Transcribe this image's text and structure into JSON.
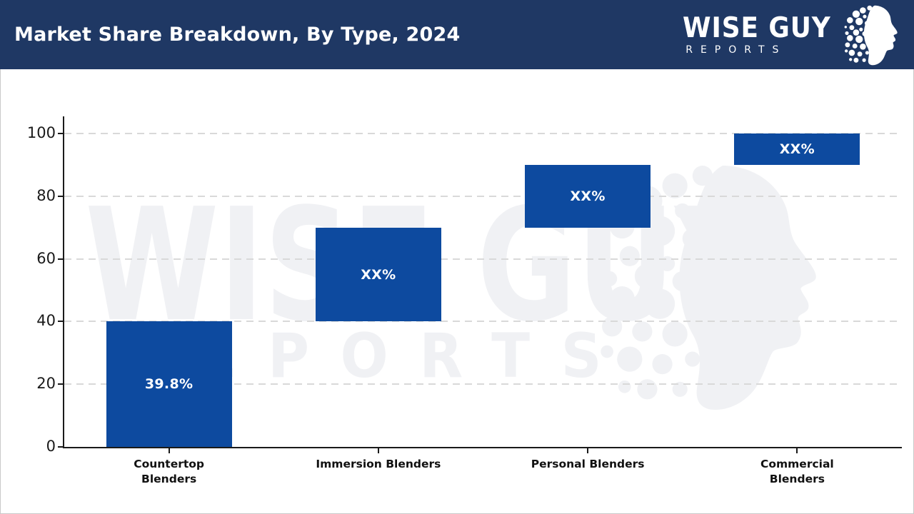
{
  "colors": {
    "header_bg": "#1f3864",
    "bar_blue": "#0d4a9f",
    "axis": "#1a1a1a",
    "gridline": "#d9d9d9",
    "watermark": "#f0f1f4",
    "bar_label": "#ffffff",
    "frame_border": "#c9c9c9"
  },
  "header": {
    "title": "Market Share Breakdown, By Type, 2024",
    "logo": {
      "wordmark": "WISE GUY",
      "subtext": "REPORTS"
    }
  },
  "watermark": {
    "wordmark": "WISE GUY",
    "subtext": "REPORTS"
  },
  "chart_data": {
    "type": "bar",
    "subtype": "waterfall",
    "title": "Market Share Breakdown, By Type, 2024",
    "categories": [
      "Countertop\nBlenders",
      "Immersion Blenders",
      "Personal Blenders",
      "Commercial\nBlenders"
    ],
    "series": [
      {
        "name": "Market share (%)",
        "segments": [
          {
            "category": "Countertop Blenders",
            "start": 0,
            "end": 40,
            "label": "39.8%"
          },
          {
            "category": "Immersion Blenders",
            "start": 40,
            "end": 70,
            "label": "XX%"
          },
          {
            "category": "Personal Blenders",
            "start": 70,
            "end": 90,
            "label": "XX%"
          },
          {
            "category": "Commercial Blenders",
            "start": 90,
            "end": 100,
            "label": "XX%"
          }
        ]
      }
    ],
    "ylim": [
      0,
      100
    ],
    "yticks": [
      0,
      20,
      40,
      60,
      80,
      100
    ],
    "xlabel": "",
    "ylabel": "",
    "grid": "horizontal-dashed",
    "legend": "none"
  }
}
